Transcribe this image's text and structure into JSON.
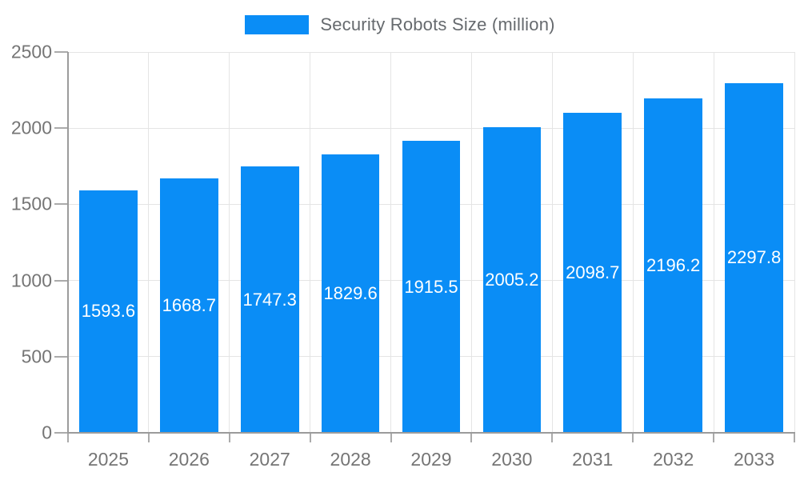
{
  "legend": {
    "label": "Security Robots Size (million)"
  },
  "colors": {
    "bar": "#0a8df6",
    "grid": "#e4e4e4",
    "axis": "#9b9b9b",
    "tick": "#ababab",
    "axis_text": "#757575",
    "legend_text": "#666a6e",
    "value_text": "#ffffff"
  },
  "chart_data": {
    "type": "bar",
    "title": "Security Robots Size (million)",
    "categories": [
      "2025",
      "2026",
      "2027",
      "2028",
      "2029",
      "2030",
      "2031",
      "2032",
      "2033"
    ],
    "values": [
      1593.6,
      1668.7,
      1747.3,
      1829.6,
      1915.5,
      2005.2,
      2098.7,
      2196.2,
      2297.8
    ],
    "value_labels": [
      "1593.6",
      "1668.7",
      "1747.3",
      "1829.6",
      "1915.5",
      "2005.2",
      "2098.7",
      "2196.2",
      "2297.8"
    ],
    "xlabel": "",
    "ylabel": "",
    "ylim": [
      0,
      2500
    ],
    "yticks": [
      0,
      500,
      1000,
      1500,
      2000,
      2500
    ],
    "ytick_labels": [
      "0",
      "500",
      "1000",
      "1500",
      "2000",
      "2500"
    ],
    "grid": true,
    "legend_position": "top",
    "bar_width_fraction": 0.72
  }
}
